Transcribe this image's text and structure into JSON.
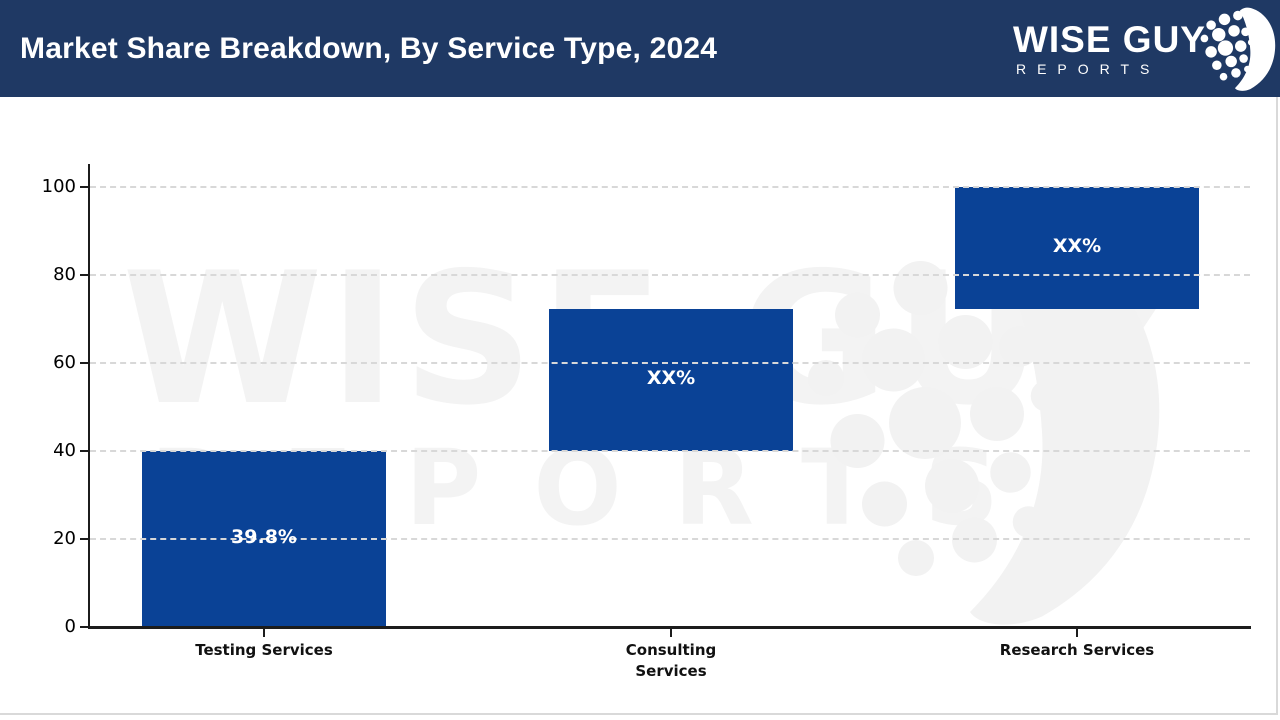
{
  "header": {
    "title": "Market Share Breakdown, By Service Type, 2024",
    "logo": {
      "line1": "WISE GUY",
      "line2": "REPORTS"
    }
  },
  "watermark": {
    "line1": "WISE GUY",
    "line2": "REPORTS"
  },
  "colors": {
    "header_bg": "#1f3964",
    "bar": "#0a4296",
    "grid": "#d8d8d8",
    "axis": "#1c1c1c",
    "watermark": "#f3f3f3",
    "frame_border": "#d9d9d9",
    "bar_label_text": "#ffffff"
  },
  "chart_data": {
    "type": "bar",
    "subtype": "waterfall",
    "title": "Market Share Breakdown, By Service Type, 2024",
    "xlabel": "",
    "ylabel": "",
    "ylim": [
      0,
      100
    ],
    "yticks": [
      0,
      20,
      40,
      60,
      80,
      100
    ],
    "grid": "horizontal dashed, drawn above bars",
    "legend": "none",
    "categories": [
      "Testing Services",
      "Consulting Services",
      "Research Services"
    ],
    "segments": [
      {
        "category": "Testing Services",
        "start": 0,
        "end": 40,
        "label": "39.8%"
      },
      {
        "category": "Consulting\nServices",
        "start": 40,
        "end": 72.3,
        "label": "XX%"
      },
      {
        "category": "Research Services",
        "start": 72.3,
        "end": 100,
        "label": "XX%"
      }
    ]
  }
}
